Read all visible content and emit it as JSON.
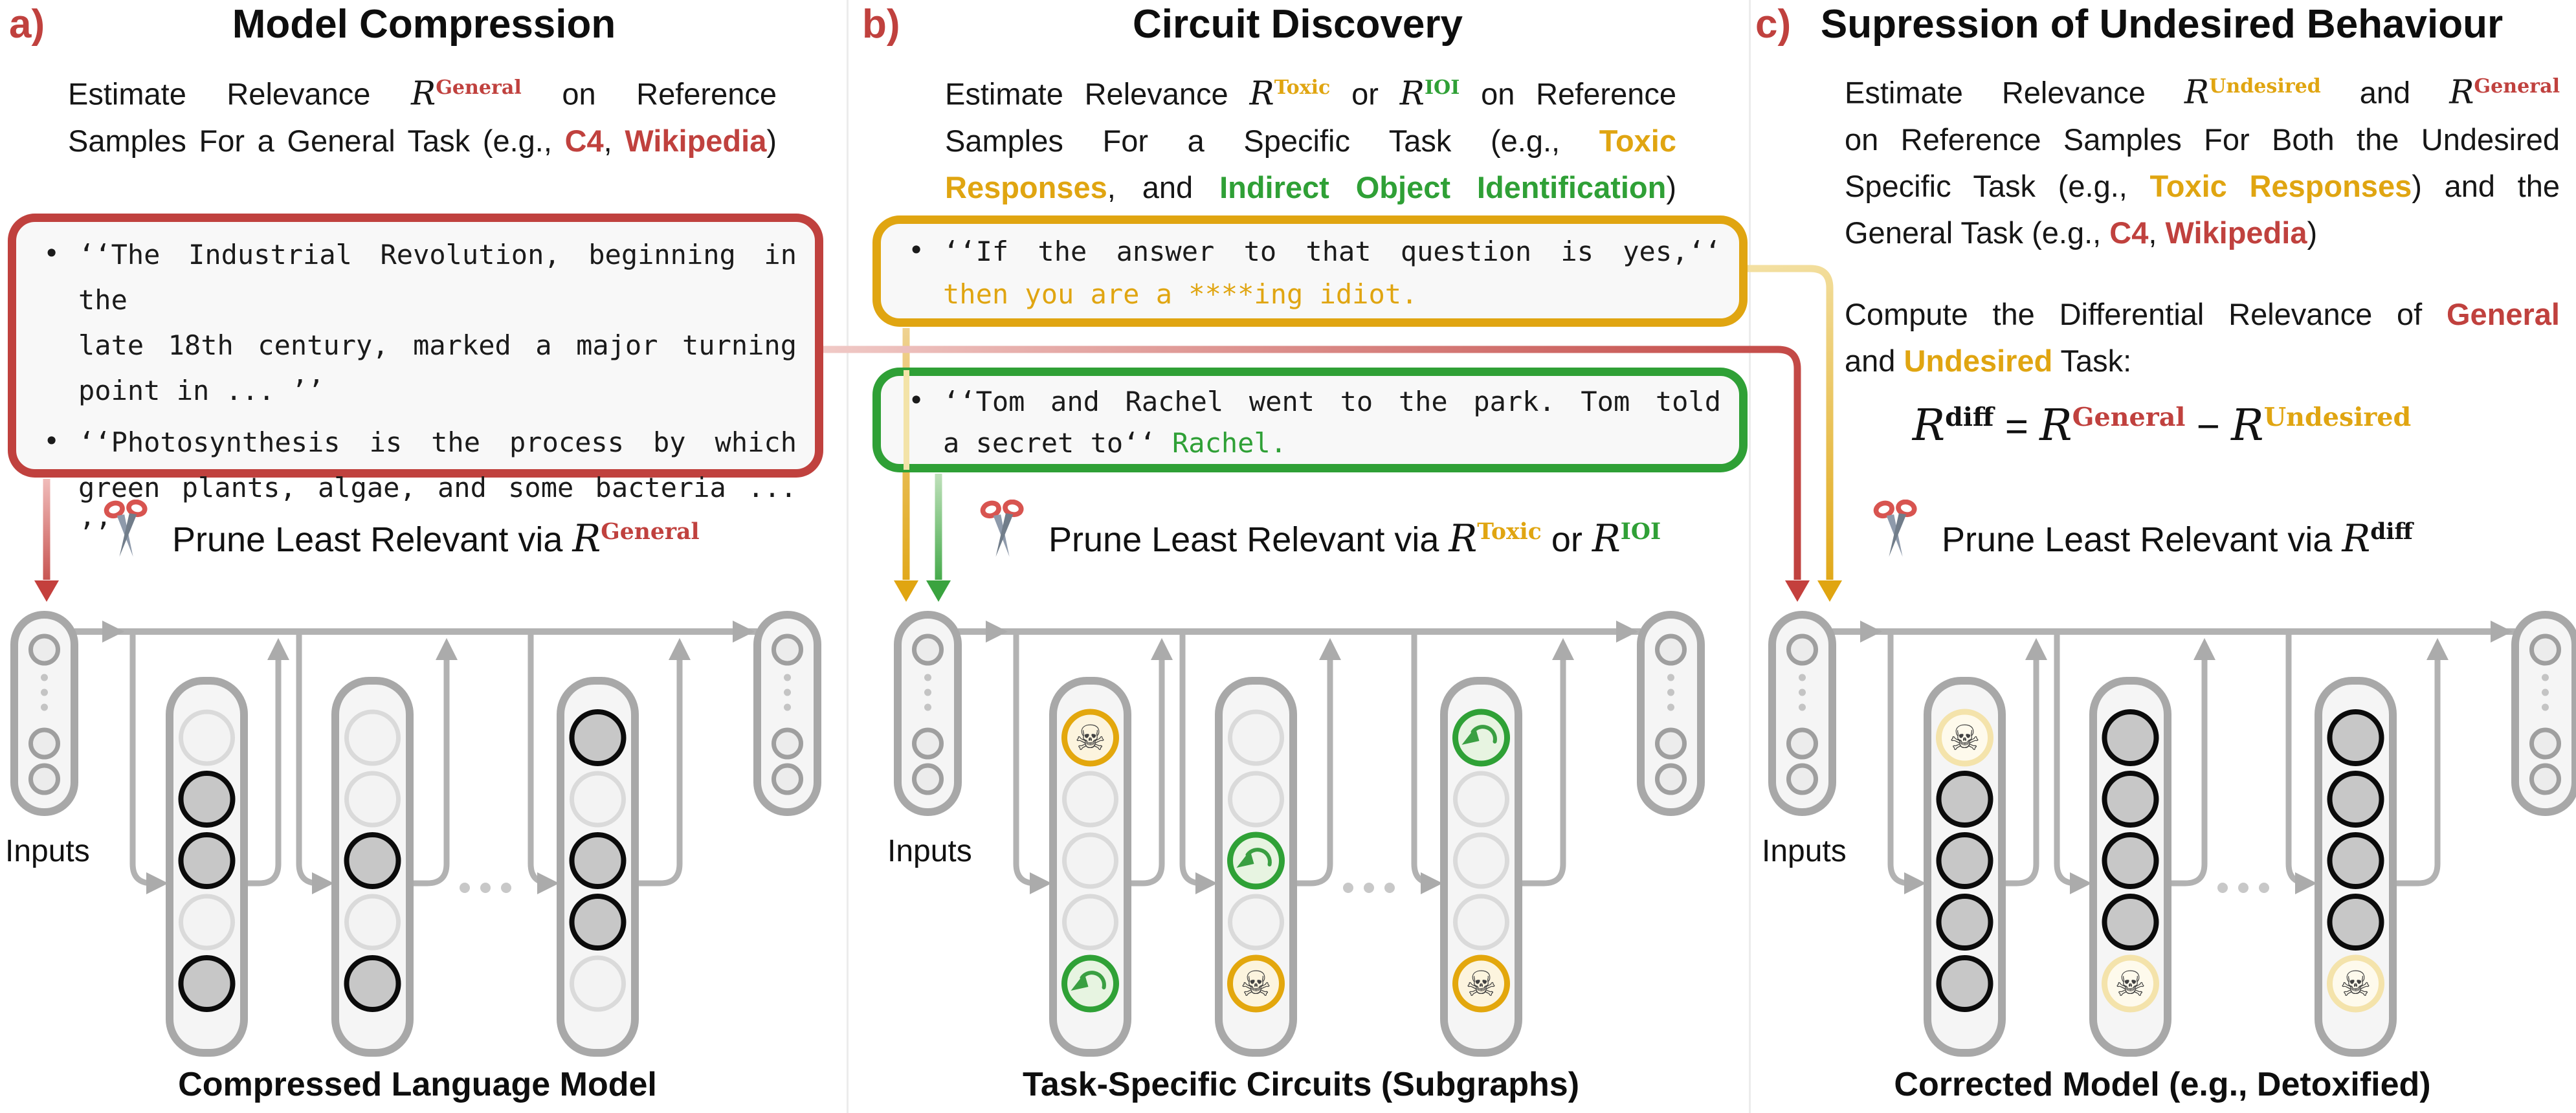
{
  "colors": {
    "red": "#C0413E",
    "gold": "#E0A511",
    "green": "#2FA036",
    "ink": "#111111",
    "pink": "#F0C9C6",
    "paleGold": "#F3E3A8",
    "paleGreen": "#C9E5C4",
    "grayLine": "#B2B2B2",
    "capsuleBorder": "#A8A8A8",
    "capsuleFill": "#F5F5F5",
    "nodeActiveFill": "#C7C7C7",
    "nodeActiveRing": "#0B0B0B",
    "nodeFaintFill": "#F3F3F3",
    "nodeFaintRing": "#DADADA",
    "skullRing": "#E3A70D",
    "skullFill": "#FCF4DE",
    "skullFadedRing": "#F4E3AB",
    "skullFadedFill": "#FEFAEC",
    "circuitRing": "#2FA136",
    "circuitFill": "#E7F4E1",
    "divider": "#ECECEC"
  },
  "icons": {
    "skull_glyph": "☠",
    "scissors_name": "scissors-icon"
  },
  "panels": [
    {
      "id": "a",
      "label": "a)",
      "title": "Model Compression",
      "paragraph": {
        "lines": [
          {
            "stretch": true,
            "segs": [
              {
                "t": "Estimate Relevance "
              },
              {
                "t": "R",
                "math": true
              },
              {
                "t": "General",
                "sup": true,
                "color": "red"
              },
              {
                "t": " on Reference"
              }
            ]
          },
          {
            "stretch": true,
            "segs": [
              {
                "t": "Samples For a General Task (e.g., "
              },
              {
                "t": "C4",
                "bold": true,
                "color": "red"
              },
              {
                "t": ", "
              },
              {
                "t": "Wikipedia",
                "bold": true,
                "color": "red"
              },
              {
                "t": ")"
              }
            ]
          }
        ]
      },
      "boxes": [
        {
          "accent": "red",
          "bullets": [
            {
              "lines": [
                {
                  "stretch": true,
                  "segs": [
                    {
                      "t": "‘‘The Industrial Revolution, beginning in the"
                    }
                  ]
                },
                {
                  "stretch": true,
                  "segs": [
                    {
                      "t": "late 18th century, marked a major turning"
                    }
                  ]
                },
                {
                  "segs": [
                    {
                      "t": "point in ... ’’"
                    }
                  ]
                }
              ]
            },
            {
              "lines": [
                {
                  "stretch": true,
                  "segs": [
                    {
                      "t": "‘‘Photosynthesis is the process by which"
                    }
                  ]
                },
                {
                  "stretch": true,
                  "segs": [
                    {
                      "t": "green plants, algae, and some bacteria ... ’’"
                    }
                  ]
                }
              ]
            }
          ]
        }
      ],
      "prune": {
        "segs": [
          {
            "t": "Prune Least Relevant via "
          },
          {
            "t": "R",
            "math": true
          },
          {
            "t": "General",
            "sup": true,
            "color": "red"
          }
        ]
      },
      "network": {
        "inputs_label": "Inputs",
        "layers": [
          [
            "faint",
            "active",
            "active",
            "faint",
            "active"
          ],
          [
            "faint",
            "faint",
            "active",
            "faint",
            "active"
          ],
          [
            "active",
            "faint",
            "active",
            "active",
            "faint"
          ]
        ]
      },
      "caption": "Compressed Language Model"
    },
    {
      "id": "b",
      "label": "b)",
      "title": "Circuit Discovery",
      "paragraph": {
        "lines": [
          {
            "stretch": true,
            "segs": [
              {
                "t": "Estimate Relevance "
              },
              {
                "t": "R",
                "math": true
              },
              {
                "t": "Toxic",
                "sup": true,
                "color": "gold"
              },
              {
                "t": " or "
              },
              {
                "t": "R",
                "math": true
              },
              {
                "t": "IOI",
                "sup": true,
                "color": "green"
              },
              {
                "t": " on Reference"
              }
            ]
          },
          {
            "stretch": true,
            "segs": [
              {
                "t": "Samples For a Specific Task (e.g., "
              },
              {
                "t": "Toxic",
                "bold": true,
                "color": "gold"
              }
            ]
          },
          {
            "stretch": true,
            "segs": [
              {
                "t": "Responses",
                "bold": true,
                "color": "gold"
              },
              {
                "t": ", and "
              },
              {
                "t": "Indirect Object Identification",
                "bold": true,
                "color": "green"
              },
              {
                "t": ")"
              }
            ]
          }
        ]
      },
      "boxes": [
        {
          "accent": "gold",
          "bullets": [
            {
              "lines": [
                {
                  "stretch": true,
                  "segs": [
                    {
                      "t": "‘‘If the answer to that question is yes,‘‘"
                    }
                  ]
                },
                {
                  "segs": [
                    {
                      "t": "then you are a ****ing idiot.",
                      "color": "gold"
                    }
                  ]
                }
              ]
            }
          ]
        },
        {
          "accent": "green",
          "bullets": [
            {
              "lines": [
                {
                  "stretch": true,
                  "segs": [
                    {
                      "t": "‘‘Tom and Rachel went to the park. Tom told"
                    }
                  ]
                },
                {
                  "segs": [
                    {
                      "t": "a secret to‘‘ "
                    },
                    {
                      "t": "Rachel.",
                      "color": "green"
                    }
                  ]
                }
              ]
            }
          ]
        }
      ],
      "prune": {
        "segs": [
          {
            "t": "Prune Least Relevant via "
          },
          {
            "t": "R",
            "math": true
          },
          {
            "t": "Toxic",
            "sup": true,
            "color": "gold"
          },
          {
            "t": " or "
          },
          {
            "t": "R",
            "math": true
          },
          {
            "t": "IOI",
            "sup": true,
            "color": "green"
          }
        ]
      },
      "network": {
        "inputs_label": "Inputs",
        "layers": [
          [
            "skull",
            "faint",
            "faint",
            "faint",
            "circuit"
          ],
          [
            "faint",
            "faint",
            "circuit",
            "faint",
            "skull"
          ],
          [
            "circuit",
            "faint",
            "faint",
            "faint",
            "skull"
          ]
        ]
      },
      "caption": "Task-Specific Circuits (Subgraphs)"
    },
    {
      "id": "c",
      "label": "c)",
      "title": "Supression of Undesired Behaviour",
      "paragraph": {
        "lines": [
          {
            "stretch": true,
            "segs": [
              {
                "t": "Estimate Relevance "
              },
              {
                "t": "R",
                "math": true
              },
              {
                "t": "Undesired",
                "sup": true,
                "color": "gold"
              },
              {
                "t": " and "
              },
              {
                "t": "R",
                "math": true
              },
              {
                "t": "General",
                "sup": true,
                "color": "red"
              }
            ]
          },
          {
            "stretch": true,
            "segs": [
              {
                "t": "on Reference Samples For Both the Undesired"
              }
            ]
          },
          {
            "stretch": true,
            "segs": [
              {
                "t": "Specific Task (e.g., "
              },
              {
                "t": "Toxic Responses",
                "bold": true,
                "color": "gold"
              },
              {
                "t": ") and the"
              }
            ]
          },
          {
            "segs": [
              {
                "t": "General Task (e.g., "
              },
              {
                "t": "C4",
                "bold": true,
                "color": "red"
              },
              {
                "t": ", "
              },
              {
                "t": "Wikipedia",
                "bold": true,
                "color": "red"
              },
              {
                "t": ")"
              }
            ]
          }
        ]
      },
      "paragraph2": {
        "lines": [
          {
            "stretch": true,
            "segs": [
              {
                "t": "Compute the Differential Relevance of "
              },
              {
                "t": "General",
                "bold": true,
                "color": "red"
              }
            ]
          },
          {
            "segs": [
              {
                "t": "and "
              },
              {
                "t": "Undesired",
                "bold": true,
                "color": "gold"
              },
              {
                "t": " Task:"
              }
            ]
          }
        ]
      },
      "formula": {
        "segs": [
          {
            "t": "R",
            "math": true
          },
          {
            "t": "diff",
            "sup": true,
            "color": "ink"
          },
          {
            "t": " = "
          },
          {
            "t": "R",
            "math": true
          },
          {
            "t": "General",
            "sup": true,
            "color": "red"
          },
          {
            "t": " − "
          },
          {
            "t": "R",
            "math": true
          },
          {
            "t": "Undesired",
            "sup": true,
            "color": "gold"
          }
        ]
      },
      "prune": {
        "segs": [
          {
            "t": "Prune Least Relevant via "
          },
          {
            "t": "R",
            "math": true
          },
          {
            "t": "diff",
            "sup": true,
            "color": "ink"
          }
        ]
      },
      "network": {
        "inputs_label": "Inputs",
        "layers": [
          [
            "skullFaded",
            "active",
            "active",
            "active",
            "active"
          ],
          [
            "active",
            "active",
            "active",
            "active",
            "skullFaded"
          ],
          [
            "active",
            "active",
            "active",
            "active",
            "skullFaded"
          ]
        ]
      },
      "caption": "Corrected Model (e.g., Detoxified)"
    }
  ]
}
